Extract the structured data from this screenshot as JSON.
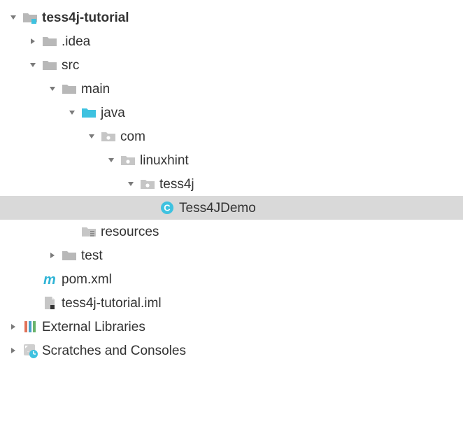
{
  "colors": {
    "arrow": "#7a7a7a",
    "folder_gray": "#b8b8b8",
    "folder_blue": "#3ec2e0",
    "package_gray": "#c6c6c6",
    "package_dot": "#ffffff",
    "class_circle": "#3ec2e0",
    "class_letter": "#ffffff",
    "m_icon": "#2fb4d6",
    "iml_icon": "#c6c6c6",
    "iml_dot": "#333333",
    "lib_bar1": "#e07258",
    "lib_bar2": "#4aa0c8",
    "lib_bar3": "#69b36b",
    "scratch_bg": "#cfcfcf",
    "scratch_clock": "#3ec2e0",
    "selected_bg": "#d9d9d9",
    "project_badge": "#3ec2e0",
    "resources_lines": "#777777",
    "text": "#333333"
  },
  "indent_unit": 28,
  "nodes": [
    {
      "id": "root",
      "depth": 0,
      "arrow": "down",
      "icon": "project-folder",
      "label": "tess4j-tutorial",
      "bold": true,
      "selected": false
    },
    {
      "id": "idea",
      "depth": 1,
      "arrow": "right",
      "icon": "folder-gray",
      "label": ".idea",
      "bold": false,
      "selected": false
    },
    {
      "id": "src",
      "depth": 1,
      "arrow": "down",
      "icon": "folder-gray",
      "label": "src",
      "bold": false,
      "selected": false
    },
    {
      "id": "main",
      "depth": 2,
      "arrow": "down",
      "icon": "folder-gray",
      "label": "main",
      "bold": false,
      "selected": false
    },
    {
      "id": "java",
      "depth": 3,
      "arrow": "down",
      "icon": "folder-blue",
      "label": "java",
      "bold": false,
      "selected": false
    },
    {
      "id": "com",
      "depth": 4,
      "arrow": "down",
      "icon": "package",
      "label": "com",
      "bold": false,
      "selected": false
    },
    {
      "id": "linuxhint",
      "depth": 5,
      "arrow": "down",
      "icon": "package",
      "label": "linuxhint",
      "bold": false,
      "selected": false
    },
    {
      "id": "tess4j",
      "depth": 6,
      "arrow": "down",
      "icon": "package",
      "label": "tess4j",
      "bold": false,
      "selected": false
    },
    {
      "id": "demo",
      "depth": 7,
      "arrow": "none",
      "icon": "class",
      "label": "Tess4JDemo",
      "bold": false,
      "selected": true
    },
    {
      "id": "resources",
      "depth": 3,
      "arrow": "none",
      "icon": "resources",
      "label": "resources",
      "bold": false,
      "selected": false
    },
    {
      "id": "test",
      "depth": 2,
      "arrow": "right",
      "icon": "folder-gray",
      "label": "test",
      "bold": false,
      "selected": false
    },
    {
      "id": "pom",
      "depth": 1,
      "arrow": "none",
      "icon": "maven",
      "label": "pom.xml",
      "bold": false,
      "selected": false
    },
    {
      "id": "iml",
      "depth": 1,
      "arrow": "none",
      "icon": "iml",
      "label": "tess4j-tutorial.iml",
      "bold": false,
      "selected": false
    },
    {
      "id": "extlib",
      "depth": 0,
      "arrow": "right",
      "icon": "libraries",
      "label": "External Libraries",
      "bold": false,
      "selected": false
    },
    {
      "id": "scratches",
      "depth": 0,
      "arrow": "right",
      "icon": "scratches",
      "label": "Scratches and Consoles",
      "bold": false,
      "selected": false
    }
  ]
}
